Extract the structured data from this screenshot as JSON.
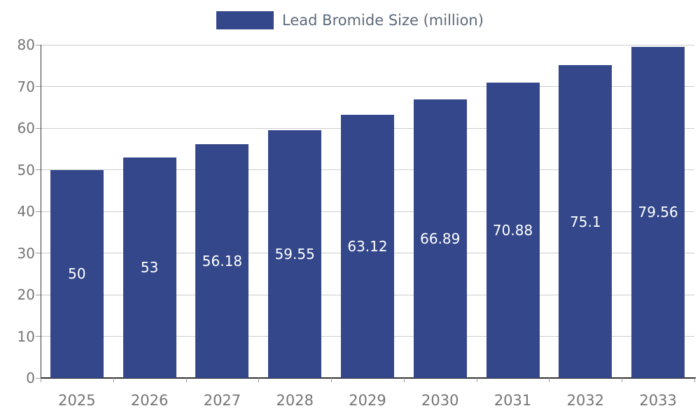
{
  "chart_data": {
    "type": "bar",
    "title": "",
    "legend": "Lead Bromide Size (million)",
    "categories": [
      "2025",
      "2026",
      "2027",
      "2028",
      "2029",
      "2030",
      "2031",
      "2032",
      "2033"
    ],
    "values": [
      50,
      53,
      56.18,
      59.55,
      63.12,
      66.89,
      70.88,
      75.1,
      79.56
    ],
    "value_labels": [
      "50",
      "53",
      "56.18",
      "59.55",
      "63.12",
      "66.89",
      "70.88",
      "75.1",
      "79.56"
    ],
    "xlabel": "",
    "ylabel": "",
    "ylim": [
      0,
      80
    ],
    "yticks": [
      0,
      10,
      20,
      30,
      40,
      50,
      60,
      70,
      80
    ],
    "grid": true,
    "legend_position": "top",
    "bar_color": "#33478A",
    "value_label_color": "#ffffff",
    "axis_text_color": "#757575",
    "grid_color": "#cccccc",
    "axis_line_color": "#333333"
  }
}
